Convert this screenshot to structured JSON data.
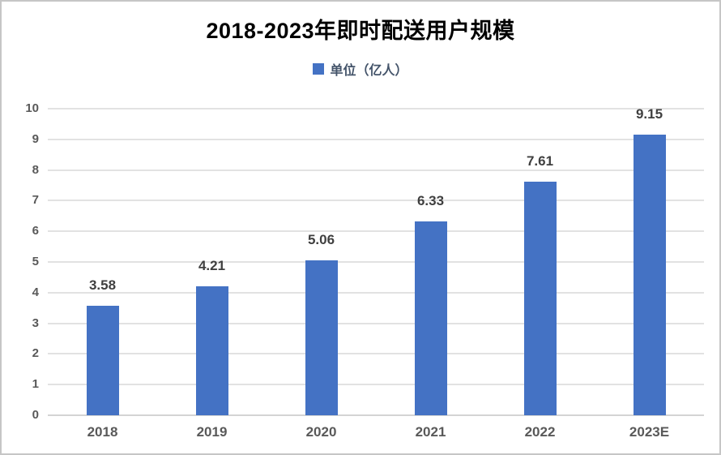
{
  "chart_data": {
    "type": "bar",
    "title": "2018-2023年即时配送用户规模",
    "legend": {
      "label": "单位（亿人）",
      "position": "top",
      "swatch_color": "#4472C4"
    },
    "categories": [
      "2018",
      "2019",
      "2020",
      "2021",
      "2022",
      "2023E"
    ],
    "values": [
      3.58,
      4.21,
      5.06,
      6.33,
      7.61,
      9.15
    ],
    "value_labels": [
      "3.58",
      "4.21",
      "5.06",
      "6.33",
      "7.61",
      "9.15"
    ],
    "ylim": [
      0,
      10
    ],
    "ytick_step": 1,
    "yticks": [
      0,
      1,
      2,
      3,
      4,
      5,
      6,
      7,
      8,
      9,
      10
    ],
    "grid": "horizontal",
    "xlabel": "",
    "ylabel": "",
    "colors": {
      "bar": "#4472C4",
      "gridline": "#e2e2e2",
      "axis_text": "#595959",
      "data_label": "#3f3f3f",
      "title": "#000000",
      "legend_text": "#44546A",
      "frame_border": "#c6c6c6",
      "background": "#ffffff"
    }
  }
}
